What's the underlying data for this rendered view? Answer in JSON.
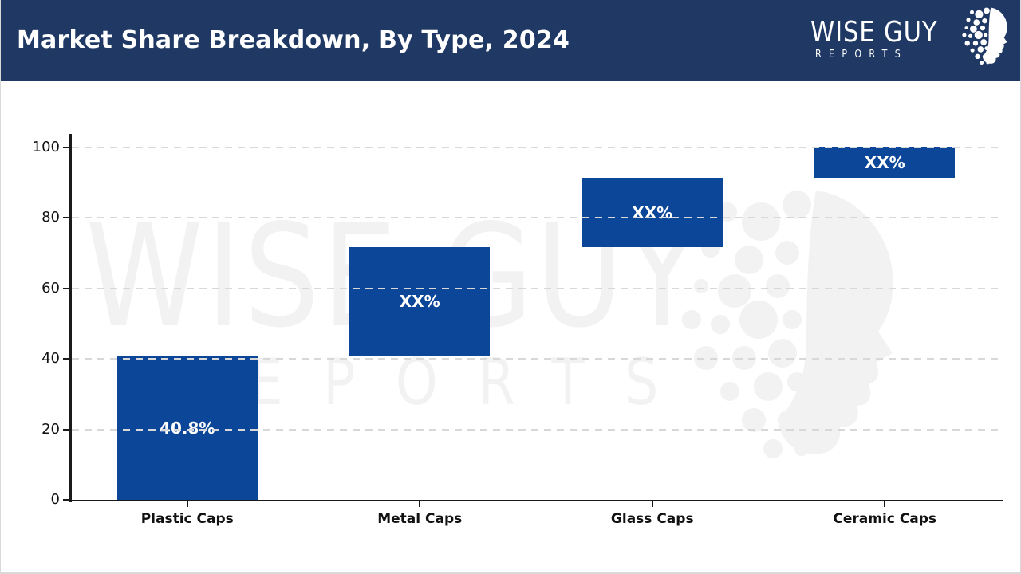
{
  "page": {
    "background": "#ffffff",
    "edge_border_color": "#d9d9d9"
  },
  "header": {
    "background": "#1f3864",
    "title": "Market Share Breakdown, By Type, 2024",
    "title_color": "#ffffff",
    "logo": {
      "wordmark": "WISE GUY",
      "subtext": "REPORTS",
      "color": "#ffffff",
      "icon": "head-profile-dots-icon"
    }
  },
  "watermark": {
    "wordmark": "WISE GUY",
    "subtext": "REPORTS",
    "color": "#f2f2f3"
  },
  "chart_data": {
    "type": "bar",
    "subtype": "floating-waterfall-segments",
    "title": "Market Share Breakdown, By Type, 2024",
    "categories": [
      "Plastic Caps",
      "Metal Caps",
      "Glass Caps",
      "Ceramic Caps"
    ],
    "bars": [
      {
        "category": "Plastic Caps",
        "start": 0,
        "end": 40.8,
        "label": "40.8%"
      },
      {
        "category": "Metal Caps",
        "start": 40.8,
        "end": 71.7,
        "label": "XX%"
      },
      {
        "category": "Glass Caps",
        "start": 71.7,
        "end": 91.3,
        "label": "XX%"
      },
      {
        "category": "Ceramic Caps",
        "start": 91.3,
        "end": 100,
        "label": "XX%"
      }
    ],
    "xlabel": "",
    "ylabel": "",
    "ylim": [
      0,
      104
    ],
    "yticks": [
      0,
      20,
      40,
      60,
      80,
      100
    ],
    "grid": {
      "horizontal": true,
      "style": "dashed",
      "color": "#d8d8d8",
      "above_bars": true
    },
    "legend": "none",
    "bar_color": "#0b4699",
    "bar_label_color": "#ffffff",
    "axis_color": "#1a1a1a",
    "tick_label_color": "#111111"
  }
}
